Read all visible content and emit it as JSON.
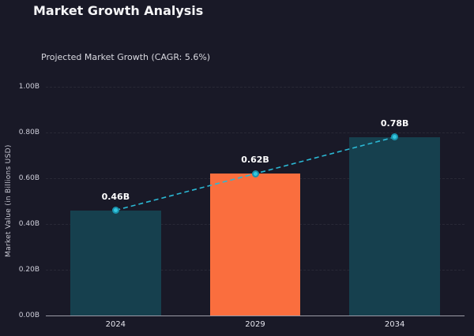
{
  "header": {
    "title": "Market Growth Analysis",
    "subtitle": "Projected Market Growth (CAGR: 5.6%)"
  },
  "chart_data": {
    "type": "bar",
    "title": "Market Growth Analysis",
    "subtitle": "Projected Market Growth (CAGR: 5.6%)",
    "categories": [
      "2024",
      "2029",
      "2034"
    ],
    "values": [
      0.46,
      0.62,
      0.78
    ],
    "value_labels": [
      "0.46B",
      "0.62B",
      "0.78B"
    ],
    "bar_colors": [
      "#16404e",
      "#fa6e3e",
      "#16404e"
    ],
    "overlay_line": true,
    "line_color": "#2bb8d4",
    "marker_fill": "#35c6de",
    "marker_edge": "#1993ad",
    "xlabel": "",
    "ylabel": "Market Value (in Billions USD)",
    "ylim": [
      0,
      1.0
    ],
    "yticks": [
      "0.00B",
      "0.20B",
      "0.40B",
      "0.60B",
      "0.80B",
      "1.00B"
    ],
    "ytick_values": [
      0,
      0.2,
      0.4,
      0.6,
      0.8,
      1.0
    ],
    "grid": "faint horizontal",
    "legend_position": "none",
    "background": "#191927"
  }
}
